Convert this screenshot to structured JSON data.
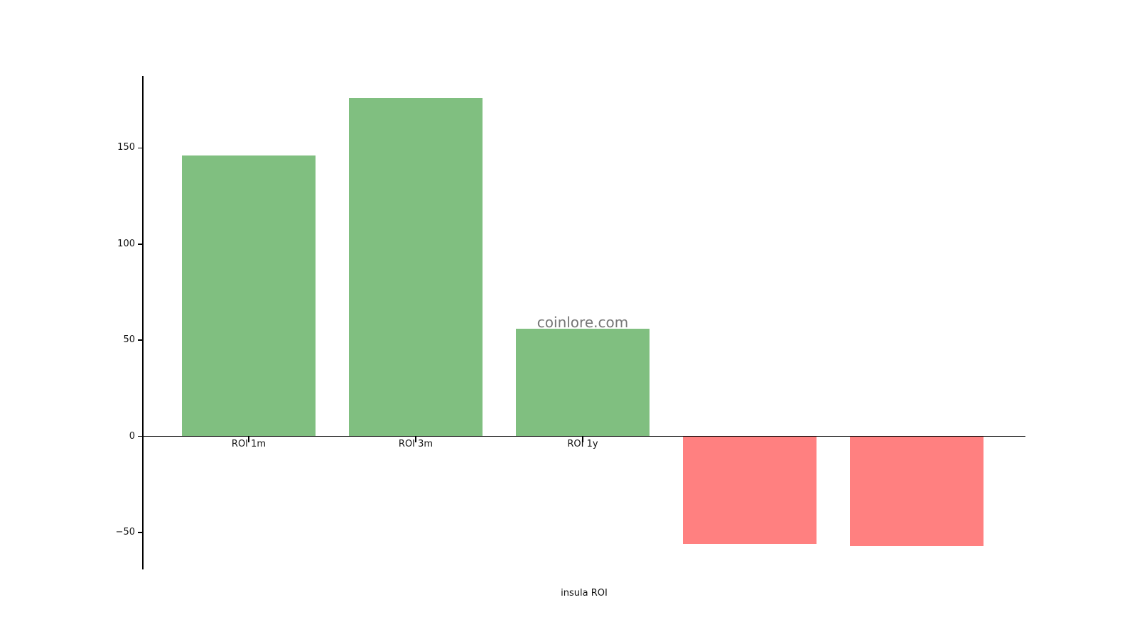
{
  "watermark": {
    "text": "coinlore.com",
    "color": "#757575"
  },
  "chart_data": {
    "type": "bar",
    "categories": [
      "ROI 1m",
      "ROI 3m",
      "ROI 1y",
      "",
      ""
    ],
    "values": [
      146,
      176,
      56,
      -56,
      -57
    ],
    "title": "",
    "xlabel": "insula ROI",
    "ylabel": "",
    "yticks": [
      150,
      100,
      50,
      0,
      -50
    ],
    "ylim": [
      -69,
      187
    ],
    "grid": false,
    "legend": null,
    "positive_color": "#80BF80",
    "negative_color": "#FF8080",
    "axis_color": "#000000",
    "tick_label_color": "#111111"
  }
}
